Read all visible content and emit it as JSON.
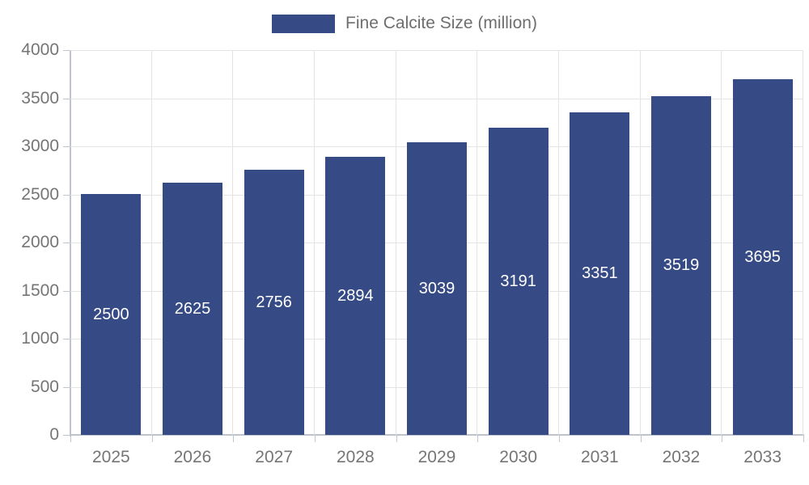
{
  "legend": {
    "label": "Fine Calcite Size (million)"
  },
  "colors": {
    "bar": "#364a85",
    "bar_label": "#ffffff",
    "grid": "#e4e4e4",
    "axis": "#bfc3cd",
    "tick": "#c2c6d0",
    "tick_label": "#757575",
    "legend_text": "#6e6e6e",
    "background": "#ffffff"
  },
  "chart_data": {
    "type": "bar",
    "title": "",
    "xlabel": "",
    "ylabel": "",
    "categories": [
      "2025",
      "2026",
      "2027",
      "2028",
      "2029",
      "2030",
      "2031",
      "2032",
      "2033"
    ],
    "series": [
      {
        "name": "Fine Calcite Size (million)",
        "values": [
          2500,
          2625,
          2756,
          2894,
          3039,
          3191,
          3351,
          3519,
          3695
        ]
      }
    ],
    "bar_value_labels": [
      "2500",
      "2625",
      "2756",
      "2894",
      "3039",
      "3191",
      "3351",
      "3519",
      "3695"
    ],
    "bar_labels_position": "inside-center",
    "ylim": [
      0,
      4000
    ],
    "yticks": [
      0,
      500,
      1000,
      1500,
      2000,
      2500,
      3000,
      3500,
      4000
    ],
    "ytick_labels": [
      "0",
      "500",
      "1000",
      "1500",
      "2000",
      "2500",
      "3000",
      "3500",
      "4000"
    ],
    "grid": true,
    "legend_position": "top-center"
  }
}
